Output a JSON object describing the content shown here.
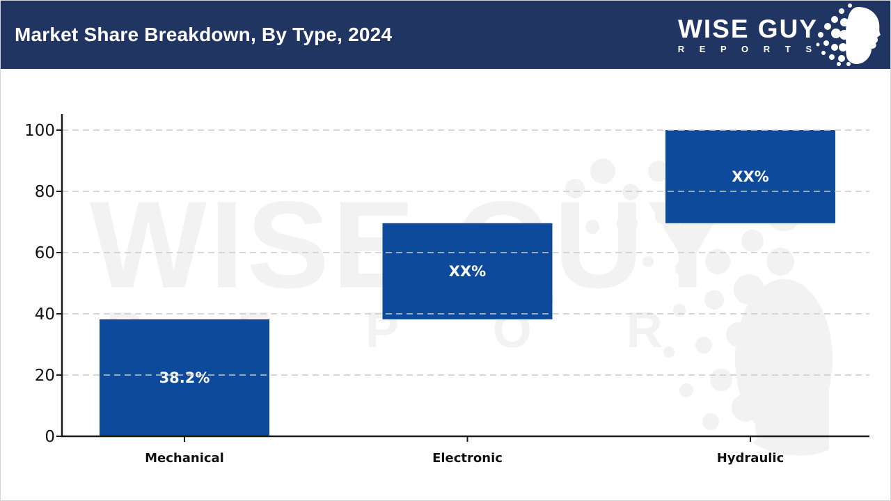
{
  "header": {
    "title": "Market Share Breakdown, By Type, 2024",
    "bg_color": "#213563",
    "logo_word": "WISE GUY",
    "logo_sub": "R E P O R T S"
  },
  "watermark": {
    "word": "WISE GUY",
    "sub": "R E P O R T S"
  },
  "chart_data": {
    "type": "bar",
    "subtype": "floating-waterfall",
    "title": "Market Share Breakdown, By Type, 2024",
    "categories": [
      "Mechanical",
      "Electronic",
      "Hydraulic"
    ],
    "series": [
      {
        "name": "Market Share",
        "ranges": [
          [
            0,
            38.2
          ],
          [
            38.2,
            69.6
          ],
          [
            69.6,
            100
          ]
        ]
      }
    ],
    "bar_labels": [
      "38.2%",
      "XX%",
      "XX%"
    ],
    "xlabel": "",
    "ylabel": "",
    "ylim": [
      0,
      100
    ],
    "yticks": [
      0,
      20,
      40,
      60,
      80,
      100
    ],
    "grid": "horizontal-dashed",
    "legend": "none",
    "bar_color": "#0d4a9c",
    "bar_label_color": "#ffffff",
    "grid_color": "rgba(202,202,202,0.75)",
    "axis_color": "#1a1a1a",
    "tick_label_color": "#111111"
  }
}
